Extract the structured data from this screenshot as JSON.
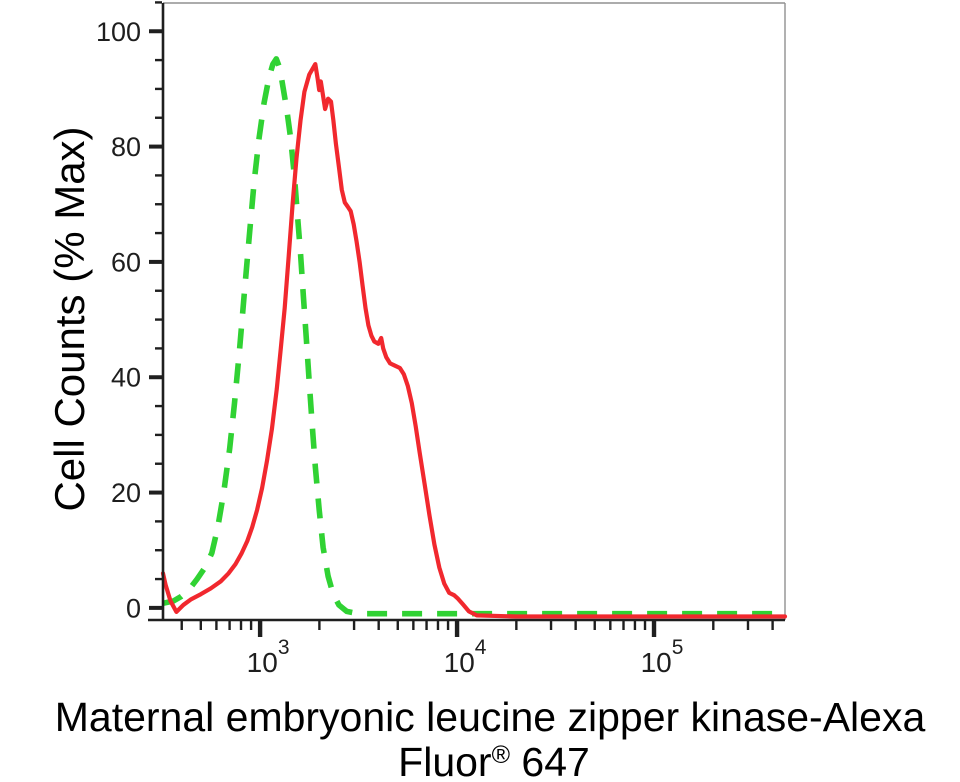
{
  "figure": {
    "background": "#ffffff"
  },
  "chart_data": {
    "type": "line",
    "subtype": "flow-cytometry-overlay-histogram",
    "ylabel": "Cell Counts (% Max)",
    "xlabel": {
      "line1": "Maternal embryonic leucine zipper kinase-Alexa",
      "line2_pre": "Fluor",
      "line2_sup": "®",
      "line2_post": " 647"
    },
    "x_scale": "log10",
    "xlim_log10": [
      2.507,
      5.665
    ],
    "ylim_pct": [
      -2.1,
      104.9
    ],
    "grid": false,
    "legend": "none",
    "colors": {
      "green_dashed": "#30d233",
      "red_solid": "#f1282e",
      "axis": "#1f1f1f",
      "box_border": "#909090",
      "tick_text": "#1e1e1e"
    },
    "y_major_ticks": [
      {
        "value": 0,
        "label": "0"
      },
      {
        "value": 20,
        "label": "20"
      },
      {
        "value": 40,
        "label": "40"
      },
      {
        "value": 60,
        "label": "60"
      },
      {
        "value": 80,
        "label": "80"
      },
      {
        "value": 100,
        "label": "100"
      }
    ],
    "y_minor_ticks": [
      5,
      10,
      15,
      25,
      30,
      35,
      45,
      50,
      55,
      65,
      70,
      75,
      85,
      90,
      95,
      105
    ],
    "x_major_ticks": [
      {
        "value": 1000,
        "mantissa": "10",
        "exponent": "3"
      },
      {
        "value": 10000,
        "mantissa": "10",
        "exponent": "4"
      },
      {
        "value": 100000,
        "mantissa": "10",
        "exponent": "5"
      }
    ],
    "x_minor_ticks": [
      400,
      500,
      600,
      700,
      800,
      900,
      2000,
      3000,
      4000,
      5000,
      6000,
      7000,
      8000,
      9000,
      20000,
      30000,
      40000,
      50000,
      60000,
      70000,
      80000,
      90000,
      200000,
      300000,
      400000
    ],
    "series": [
      {
        "name": "green-dashed-histogram",
        "style": "dashed",
        "color": "#30d233",
        "points_log10x_pct": [
          [
            2.507,
            0.8
          ],
          [
            2.56,
            1.2
          ],
          [
            2.6,
            2.0
          ],
          [
            2.64,
            3.2
          ],
          [
            2.68,
            5.0
          ],
          [
            2.72,
            7.0
          ],
          [
            2.755,
            9.5
          ],
          [
            2.785,
            14.0
          ],
          [
            2.815,
            20.0
          ],
          [
            2.845,
            27.5
          ],
          [
            2.87,
            35.5
          ],
          [
            2.895,
            44.5
          ],
          [
            2.92,
            54.5
          ],
          [
            2.945,
            64.5
          ],
          [
            2.97,
            74.0
          ],
          [
            2.995,
            81.5
          ],
          [
            3.02,
            87.5
          ],
          [
            3.045,
            92.0
          ],
          [
            3.065,
            94.3
          ],
          [
            3.082,
            95.2
          ],
          [
            3.1,
            93.6
          ],
          [
            3.118,
            90.0
          ],
          [
            3.135,
            86.5
          ],
          [
            3.155,
            81.5
          ],
          [
            3.175,
            74.5
          ],
          [
            3.19,
            68.0
          ],
          [
            3.205,
            61.5
          ],
          [
            3.22,
            54.0
          ],
          [
            3.235,
            46.5
          ],
          [
            3.25,
            39.0
          ],
          [
            3.265,
            31.5
          ],
          [
            3.28,
            24.5
          ],
          [
            3.3,
            17.0
          ],
          [
            3.32,
            10.5
          ],
          [
            3.345,
            5.5
          ],
          [
            3.37,
            2.5
          ],
          [
            3.4,
            0.5
          ],
          [
            3.44,
            -0.6
          ],
          [
            3.5,
            -1.0
          ],
          [
            3.7,
            -1.0
          ],
          [
            3.9,
            -1.0
          ],
          [
            4.1,
            -1.0
          ],
          [
            4.3,
            -1.0
          ],
          [
            4.5,
            -1.0
          ],
          [
            4.7,
            -1.0
          ],
          [
            4.9,
            -1.0
          ],
          [
            5.1,
            -1.0
          ],
          [
            5.3,
            -1.0
          ],
          [
            5.5,
            -1.0
          ],
          [
            5.665,
            -1.0
          ]
        ]
      },
      {
        "name": "red-solid-histogram",
        "style": "solid",
        "color": "#f1282e",
        "points_log10x_pct": [
          [
            2.507,
            6.0
          ],
          [
            2.52,
            4.0
          ],
          [
            2.545,
            1.2
          ],
          [
            2.575,
            -0.7
          ],
          [
            2.61,
            0.5
          ],
          [
            2.65,
            1.5
          ],
          [
            2.7,
            2.4
          ],
          [
            2.75,
            3.4
          ],
          [
            2.8,
            4.6
          ],
          [
            2.84,
            6.0
          ],
          [
            2.875,
            7.6
          ],
          [
            2.905,
            9.4
          ],
          [
            2.935,
            11.6
          ],
          [
            2.96,
            14.0
          ],
          [
            2.985,
            17.0
          ],
          [
            3.01,
            20.8
          ],
          [
            3.035,
            25.5
          ],
          [
            3.06,
            31.0
          ],
          [
            3.085,
            38.0
          ],
          [
            3.105,
            45.0
          ],
          [
            3.125,
            52.0
          ],
          [
            3.145,
            61.0
          ],
          [
            3.165,
            70.0
          ],
          [
            3.185,
            78.0
          ],
          [
            3.205,
            84.5
          ],
          [
            3.225,
            89.5
          ],
          [
            3.25,
            92.5
          ],
          [
            3.265,
            93.4
          ],
          [
            3.28,
            94.3
          ],
          [
            3.292,
            91.8
          ],
          [
            3.3,
            89.8
          ],
          [
            3.308,
            91.3
          ],
          [
            3.318,
            89.2
          ],
          [
            3.33,
            86.5
          ],
          [
            3.345,
            88.3
          ],
          [
            3.36,
            87.8
          ],
          [
            3.372,
            84.5
          ],
          [
            3.385,
            80.5
          ],
          [
            3.4,
            76.5
          ],
          [
            3.415,
            72.5
          ],
          [
            3.43,
            70.3
          ],
          [
            3.445,
            69.6
          ],
          [
            3.46,
            68.8
          ],
          [
            3.475,
            66.5
          ],
          [
            3.49,
            63.5
          ],
          [
            3.505,
            60.0
          ],
          [
            3.52,
            56.0
          ],
          [
            3.535,
            52.0
          ],
          [
            3.55,
            49.0
          ],
          [
            3.565,
            47.2
          ],
          [
            3.58,
            46.2
          ],
          [
            3.6,
            45.8
          ],
          [
            3.615,
            46.8
          ],
          [
            3.625,
            45.0
          ],
          [
            3.64,
            43.5
          ],
          [
            3.66,
            42.4
          ],
          [
            3.685,
            42.0
          ],
          [
            3.71,
            41.6
          ],
          [
            3.73,
            40.5
          ],
          [
            3.75,
            38.5
          ],
          [
            3.77,
            35.5
          ],
          [
            3.79,
            31.5
          ],
          [
            3.81,
            27.0
          ],
          [
            3.835,
            21.5
          ],
          [
            3.86,
            16.0
          ],
          [
            3.885,
            11.0
          ],
          [
            3.91,
            7.0
          ],
          [
            3.935,
            4.2
          ],
          [
            3.96,
            2.6
          ],
          [
            3.985,
            2.2
          ],
          [
            4.005,
            1.6
          ],
          [
            4.03,
            0.6
          ],
          [
            4.06,
            -0.6
          ],
          [
            4.1,
            -1.3
          ],
          [
            4.3,
            -1.5
          ],
          [
            4.6,
            -1.5
          ],
          [
            4.9,
            -1.5
          ],
          [
            5.2,
            -1.5
          ],
          [
            5.5,
            -1.5
          ],
          [
            5.665,
            -1.5
          ]
        ]
      }
    ]
  }
}
